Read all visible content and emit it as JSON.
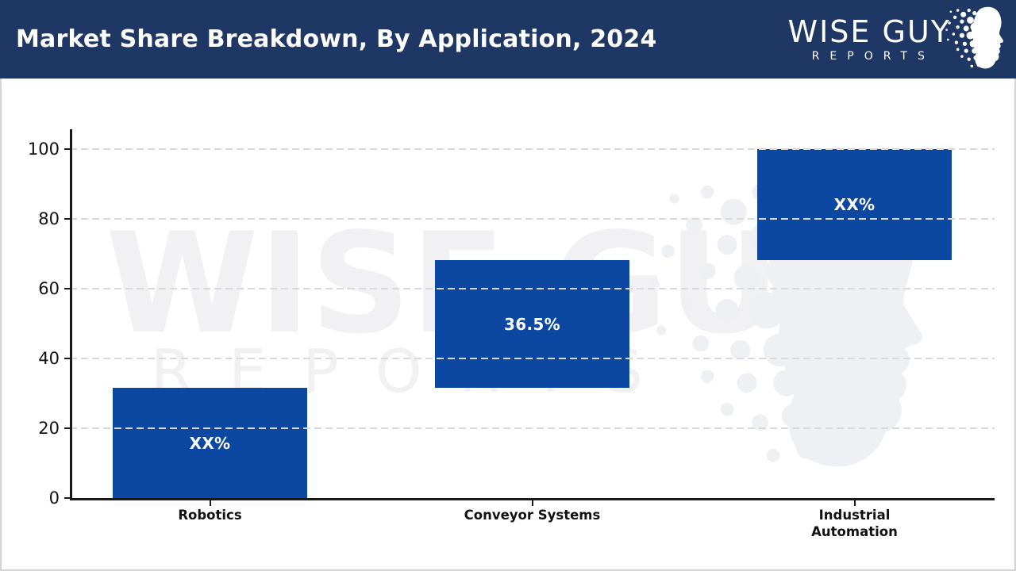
{
  "header": {
    "title": "Market Share Breakdown, By Application, 2024",
    "bg_color": "#1f3764",
    "logo": {
      "line1": "WISE GUY",
      "line2": "REPORTS",
      "face_icon": "dotted-face-profile-icon"
    }
  },
  "watermark": {
    "line1": "WISE GUY",
    "line2": "REPORTS"
  },
  "chart_data": {
    "type": "bar",
    "variant": "floating-waterfall",
    "title": "Market Share Breakdown, By Application, 2024",
    "xlabel": "",
    "ylabel": "",
    "categories": [
      "Robotics",
      "Conveyor Systems",
      "Industrial Automation"
    ],
    "bars": [
      {
        "category": "Robotics",
        "start": 0,
        "end": 31.5,
        "label": "XX%"
      },
      {
        "category": "Conveyor Systems",
        "start": 31.5,
        "end": 68,
        "label": "36.5%"
      },
      {
        "category": "Industrial Automation",
        "start": 68,
        "end": 100,
        "label": "XX%"
      }
    ],
    "yticks": [
      0,
      20,
      40,
      60,
      80,
      100
    ],
    "ylim": [
      0,
      105
    ],
    "grid": "horizontal dashed, drawn above bars",
    "legend": "none",
    "bar_color": "#0c47a1",
    "bar_label_color": "#ffffff",
    "grid_color": "#d9d9d9",
    "axis_color": "#1a1a1a"
  }
}
